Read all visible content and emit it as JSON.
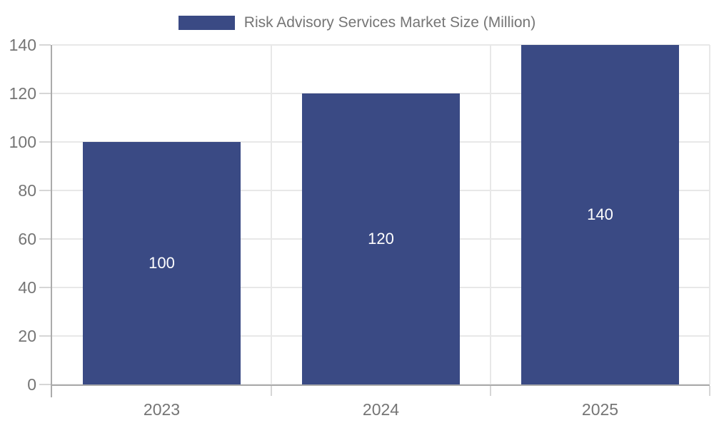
{
  "legend": {
    "label": "Risk Advisory Services Market Size (Million)"
  },
  "chart_data": {
    "type": "bar",
    "title": "Risk Advisory Services Market Size (Million)",
    "categories": [
      "2023",
      "2024",
      "2025"
    ],
    "values": [
      100,
      120,
      140
    ],
    "data_labels": [
      "100",
      "120",
      "140"
    ],
    "series": [
      {
        "name": "Risk Advisory Services Market Size (Million)",
        "values": [
          100,
          120,
          140
        ]
      }
    ],
    "xlabel": "",
    "ylabel": "",
    "ylim": [
      0,
      140
    ],
    "yticks": [
      0,
      20,
      40,
      60,
      80,
      100,
      120,
      140
    ],
    "grid": true,
    "legend_position": "top-center",
    "colors": {
      "bar": "#3A4A84",
      "bar_label": "#FFFFFF",
      "axis_line": "#ABABAB",
      "tick": "#D6D6D6",
      "grid": "#E8E8E8",
      "axis_text": "#757575",
      "legend_text": "#757575",
      "background": "#FFFFFF"
    }
  }
}
